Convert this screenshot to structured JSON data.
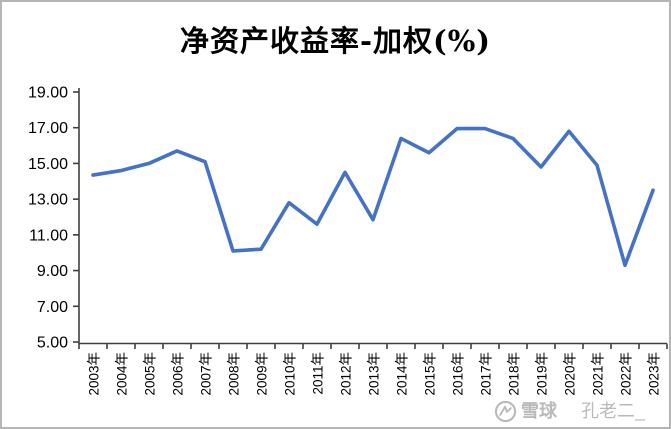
{
  "title": "净资产收益率-加权(%)",
  "watermark": {
    "brand": "雪球",
    "username": "孔老二_",
    "icon": "xueqiu-logo",
    "color": "#a9a9a9"
  },
  "colors": {
    "line": "#4472C4",
    "axis": "#3f3f3f",
    "label": "#000000",
    "frame_border": "#b5b5b5",
    "background": "#ffffff"
  },
  "chart_data": {
    "type": "line",
    "title": "净资产收益率-加权(%)",
    "xlabel": "",
    "ylabel": "",
    "categories": [
      "2003年",
      "2004年",
      "2005年",
      "2006年",
      "2007年",
      "2008年",
      "2009年",
      "2010年",
      "2011年",
      "2012年",
      "2013年",
      "2014年",
      "2015年",
      "2016年",
      "2017年",
      "2018年",
      "2019年",
      "2020年",
      "2021年",
      "2022年",
      "2023年"
    ],
    "values": [
      14.35,
      14.6,
      15.0,
      15.7,
      15.1,
      10.1,
      10.2,
      12.8,
      11.6,
      14.5,
      11.85,
      16.4,
      15.6,
      16.95,
      16.95,
      16.4,
      14.8,
      16.8,
      14.9,
      9.3,
      13.5
    ],
    "ylim": [
      5,
      19
    ],
    "ytick_step": 2,
    "ytick_labels": [
      "19.00",
      "17.00",
      "15.00",
      "13.00",
      "11.00",
      "9.00",
      "7.00",
      "5.00"
    ],
    "grid": false,
    "legend": "none",
    "line_color": "#4472C4",
    "axis_color": "#3f3f3f",
    "x_labels_rotated_degrees": 90
  }
}
